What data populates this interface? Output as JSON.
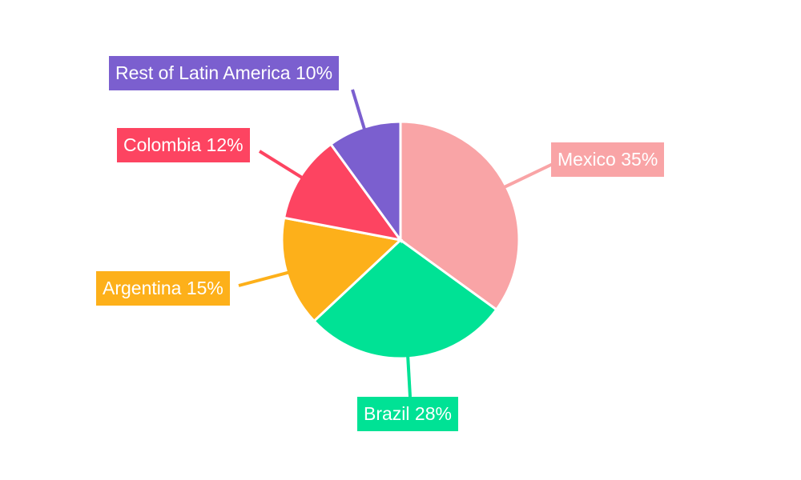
{
  "chart_data": {
    "type": "pie",
    "title": "",
    "categories": [
      "Mexico",
      "Brazil",
      "Argentina",
      "Colombia",
      "Rest of Latin America"
    ],
    "values": [
      35,
      28,
      15,
      12,
      10
    ],
    "unit": "%",
    "colors": [
      "#f9a4a6",
      "#00e295",
      "#fdb01a",
      "#fd4461",
      "#7b5fcf"
    ],
    "start_angle": "12 o'clock",
    "direction": "clockwise",
    "legend": false
  },
  "labels": [
    {
      "text": "Mexico 35%",
      "color": "#f9a4a6"
    },
    {
      "text": "Brazil 28%",
      "color": "#00e295"
    },
    {
      "text": "Argentina 15%",
      "color": "#fdb01a"
    },
    {
      "text": "Colombia 12%",
      "color": "#fd4461"
    },
    {
      "text": "Rest of Latin America 10%",
      "color": "#7b5fcf"
    }
  ]
}
